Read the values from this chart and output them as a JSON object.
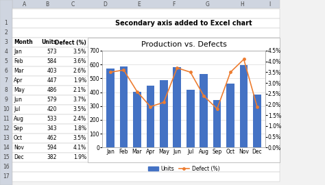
{
  "months": [
    "Jan",
    "Feb",
    "Mar",
    "Apr",
    "May",
    "Jun",
    "Jul",
    "Aug",
    "Sep",
    "Oct",
    "Nov",
    "Dec"
  ],
  "units": [
    573,
    584,
    403,
    447,
    486,
    579,
    420,
    533,
    343,
    462,
    594,
    382
  ],
  "defect": [
    3.5,
    3.6,
    2.6,
    1.9,
    2.1,
    3.7,
    3.5,
    2.4,
    1.8,
    3.5,
    4.1,
    1.9
  ],
  "chart_title": "Production vs. Defects",
  "bar_color": "#4472C4",
  "line_color": "#ED7D31",
  "ylim_left": [
    0,
    700
  ],
  "ylim_right": [
    0,
    0.045
  ],
  "yticks_left": [
    0,
    100,
    200,
    300,
    400,
    500,
    600,
    700
  ],
  "yticks_right": [
    0.0,
    0.005,
    0.01,
    0.015,
    0.02,
    0.025,
    0.03,
    0.035,
    0.04,
    0.045
  ],
  "ytick_labels_right": [
    "0.0%",
    "0.5%",
    "1.0%",
    "1.5%",
    "2.0%",
    "2.5%",
    "3.0%",
    "3.5%",
    "4.0%",
    "4.5%"
  ],
  "super_title": "Secondary axis added to Excel chart",
  "legend_units": "Units",
  "legend_defect": "Defect (%)",
  "excel_bg": "#F2F2F2",
  "cell_bg": "#FFFFFF",
  "grid_color": "#D9D9D9",
  "chart_bg": "#FFFFFF",
  "border_color": "#BFBFBF",
  "header_row_bg": "#F2F2F2",
  "col_header_bg": "#D6DCE4"
}
